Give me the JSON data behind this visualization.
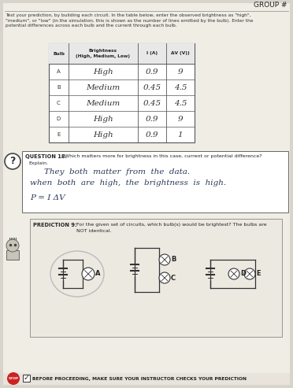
{
  "bg_color": "#d8d4cc",
  "paper_color": "#f0ede5",
  "title": "GROUP #",
  "header_text": "Test your prediction, by building each circuit. In the table below, enter the observed brightness as \"high\",\n\"medium\", or \"low\" (in the simulation, this is shown as the number of lines emitted by the bulb). Enter the\npotential differences across each bulb and the current through each bulb.",
  "table_headers": [
    "Bulb",
    "Brightness\n(High, Medium, Low)",
    "I (A)",
    "ΔV (V))"
  ],
  "table_rows": [
    [
      "A",
      "High",
      "0.9",
      "9"
    ],
    [
      "B",
      "Medium",
      "0.45",
      "4.5"
    ],
    [
      "C",
      "Medium",
      "0.45",
      "4.5"
    ],
    [
      "D",
      "High",
      "0.9",
      "9"
    ],
    [
      "E",
      "High",
      "0.9",
      "1"
    ]
  ],
  "question_num": "QUESTION 18.",
  "question_text": "Which matters more for brightness in this case, current or potential difference?",
  "explain_label": "Explain.",
  "answer_line1": "They  both  matter  from  the  data.",
  "answer_line2": "when  both  are  high,  the  brightness  is  high.",
  "answer_line3": "P = I ΔV",
  "prediction_label": "PREDICTION 9:",
  "prediction_text": "For the given set of circuits, which bulb(s) would be brightest? The bulbs are",
  "prediction_text2": "NOT identical.",
  "stop_text": "BEFORE PROCEEDING, MAKE SURE YOUR INSTRUCTOR CHECKS YOUR PREDICTION"
}
